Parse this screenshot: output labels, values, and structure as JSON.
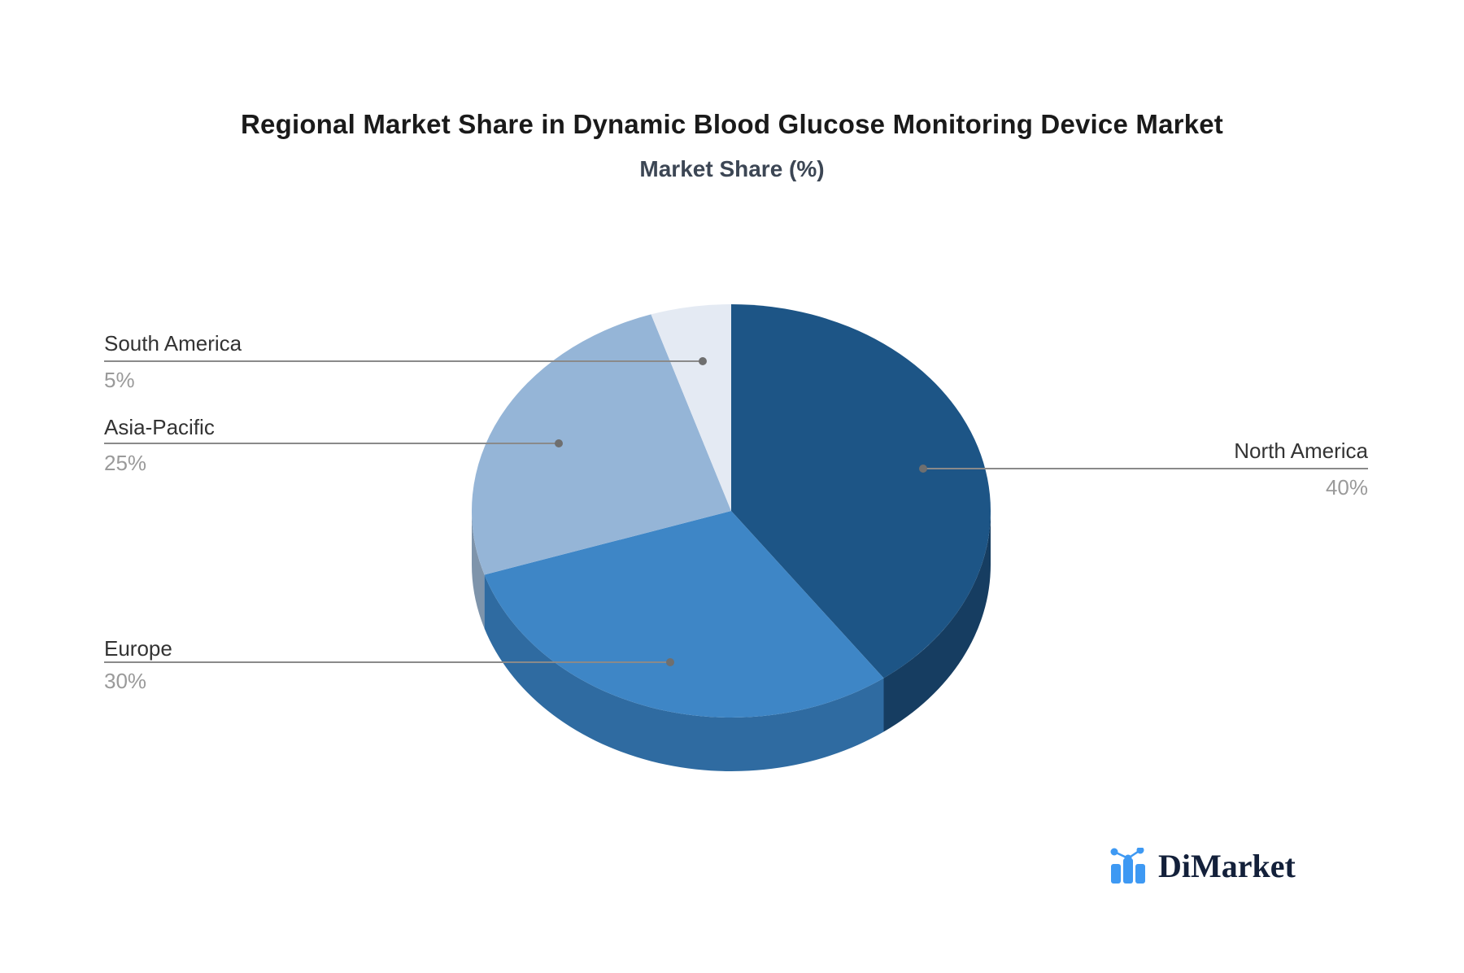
{
  "header": {
    "title": "Regional Market Share in Dynamic Blood Glucose Monitoring Device Market",
    "subtitle": "Market Share (%)"
  },
  "chart_data": {
    "type": "pie",
    "title": "Regional Market Share in Dynamic Blood Glucose Monitoring Device Market",
    "subtitle": "Market Share (%)",
    "unit": "percent",
    "style": "3d",
    "start_angle": "12-o-clock",
    "direction": "clockwise",
    "legend_position": "callout-labels-with-leader-lines",
    "slices": [
      {
        "name": "North America",
        "value": 40,
        "pct_label": "40%",
        "color": "#1d5586",
        "side_color": "#163d61",
        "label_side": "right"
      },
      {
        "name": "Europe",
        "value": 30,
        "pct_label": "30%",
        "color": "#3e86c6",
        "side_color": "#2f6ba1",
        "label_side": "left"
      },
      {
        "name": "Asia-Pacific",
        "value": 25,
        "pct_label": "25%",
        "color": "#95b5d7",
        "side_color": "#7e94ab",
        "label_side": "left"
      },
      {
        "name": "South America",
        "value": 5,
        "pct_label": "5%",
        "color": "#e4eaf3",
        "side_color": "#c9d2de",
        "label_side": "left"
      }
    ]
  },
  "branding": {
    "logo_text": "DiMarket"
  },
  "colors": {
    "background": "#ffffff",
    "title_text": "#1a1a1a",
    "subtitle_text": "#3c4654",
    "label_text": "#333333",
    "pct_text": "#9a9a9a",
    "leader_line": "#8a8a8a",
    "leader_dot": "#6f6f6f",
    "logo_blue": "#3e99f3",
    "logo_navy": "#13203a"
  }
}
